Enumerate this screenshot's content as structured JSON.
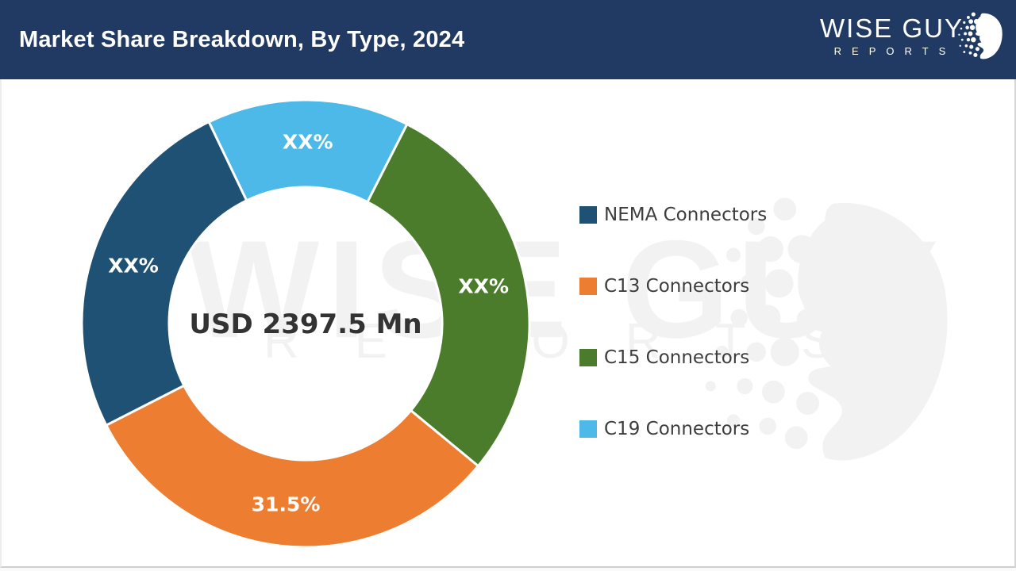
{
  "header": {
    "logo": {
      "line1": "WISE GUY",
      "line2": "REPORTS"
    }
  },
  "watermark": {
    "line1": "WISE GUY",
    "line2": "REPORTS"
  },
  "colors": {
    "header_bg": "#213A63",
    "body_bg": "#FFFFFF",
    "border": "#D6D6D6",
    "center_text": "#333333",
    "legend_text": "#3D3D3D",
    "slice_label_text": "#FFFFFF",
    "watermark": "#F2F2F2"
  },
  "chart_data": {
    "type": "donut",
    "title": "Market Share Breakdown, By Type, 2024",
    "center_label": "USD 2397.5 Mn",
    "start_angle_deg": -25.6,
    "direction": "clockwise",
    "inner_radius_ratio": 0.61,
    "outer_radius_px": 282,
    "slices": [
      {
        "name": "C19 Connectors",
        "value": 14.6,
        "label": "XX%",
        "color": "#4DB9E9"
      },
      {
        "name": "C15 Connectors",
        "value": 28.5,
        "label": "XX%",
        "color": "#4A7C2C"
      },
      {
        "name": "C13 Connectors",
        "value": 31.5,
        "label": "31.5%",
        "color": "#ED7D31"
      },
      {
        "name": "NEMA Connectors",
        "value": 25.4,
        "label": "XX%",
        "color": "#1F5174"
      }
    ],
    "legend_order": [
      "NEMA Connectors",
      "C13 Connectors",
      "C15 Connectors",
      "C19 Connectors"
    ]
  }
}
